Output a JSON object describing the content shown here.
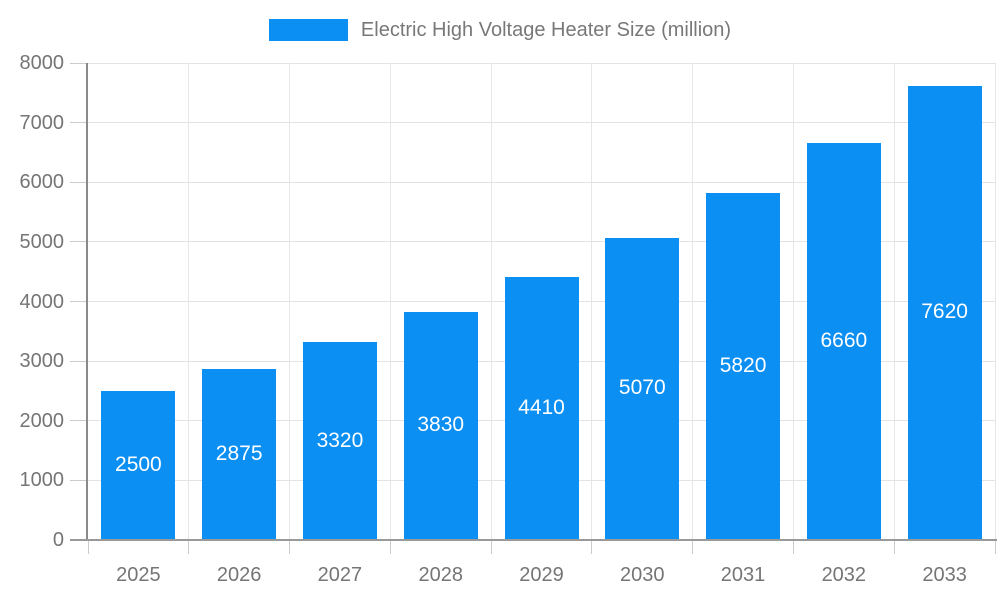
{
  "legend": {
    "label": "Electric High Voltage Heater Size (million)"
  },
  "chart_data": {
    "type": "bar",
    "title": "Electric High Voltage Heater Size (million)",
    "categories": [
      "2025",
      "2026",
      "2027",
      "2028",
      "2029",
      "2030",
      "2031",
      "2032",
      "2033"
    ],
    "values": [
      2500,
      2875,
      3320,
      3830,
      4410,
      5070,
      5820,
      6660,
      7620
    ],
    "xlabel": "",
    "ylabel": "",
    "ylim": [
      0,
      8000
    ],
    "yticks": [
      0,
      1000,
      2000,
      3000,
      4000,
      5000,
      6000,
      7000,
      8000
    ],
    "grid": true,
    "legend_position": "top",
    "bar_color": "#0b8ff2",
    "bar_label_color": "#ffffff",
    "axis_text_color": "#757575",
    "grid_color": "#e3e3e3"
  }
}
